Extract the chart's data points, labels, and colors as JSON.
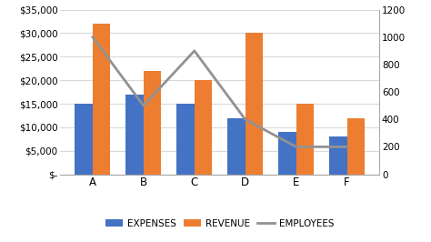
{
  "categories": [
    "A",
    "B",
    "C",
    "D",
    "E",
    "F"
  ],
  "expenses": [
    15000,
    17000,
    15000,
    12000,
    9000,
    8000
  ],
  "revenue": [
    32000,
    22000,
    20000,
    30000,
    15000,
    12000
  ],
  "employees": [
    1000,
    500,
    900,
    400,
    200,
    200
  ],
  "expenses_color": "#4472C4",
  "revenue_color": "#ED7D31",
  "employees_color": "#929292",
  "ylim_left": [
    0,
    35000
  ],
  "ylim_right": [
    0,
    1200
  ],
  "yticks_left": [
    0,
    5000,
    10000,
    15000,
    20000,
    25000,
    30000,
    35000
  ],
  "yticks_right": [
    0,
    200,
    400,
    600,
    800,
    1000,
    1200
  ],
  "legend_labels": [
    "EXPENSES",
    "REVENUE",
    "EMPLOYEES"
  ],
  "background_color": "#FFFFFF",
  "grid_color": "#D9D9D9",
  "bar_width": 0.35,
  "figsize": [
    4.74,
    2.66
  ],
  "dpi": 100
}
